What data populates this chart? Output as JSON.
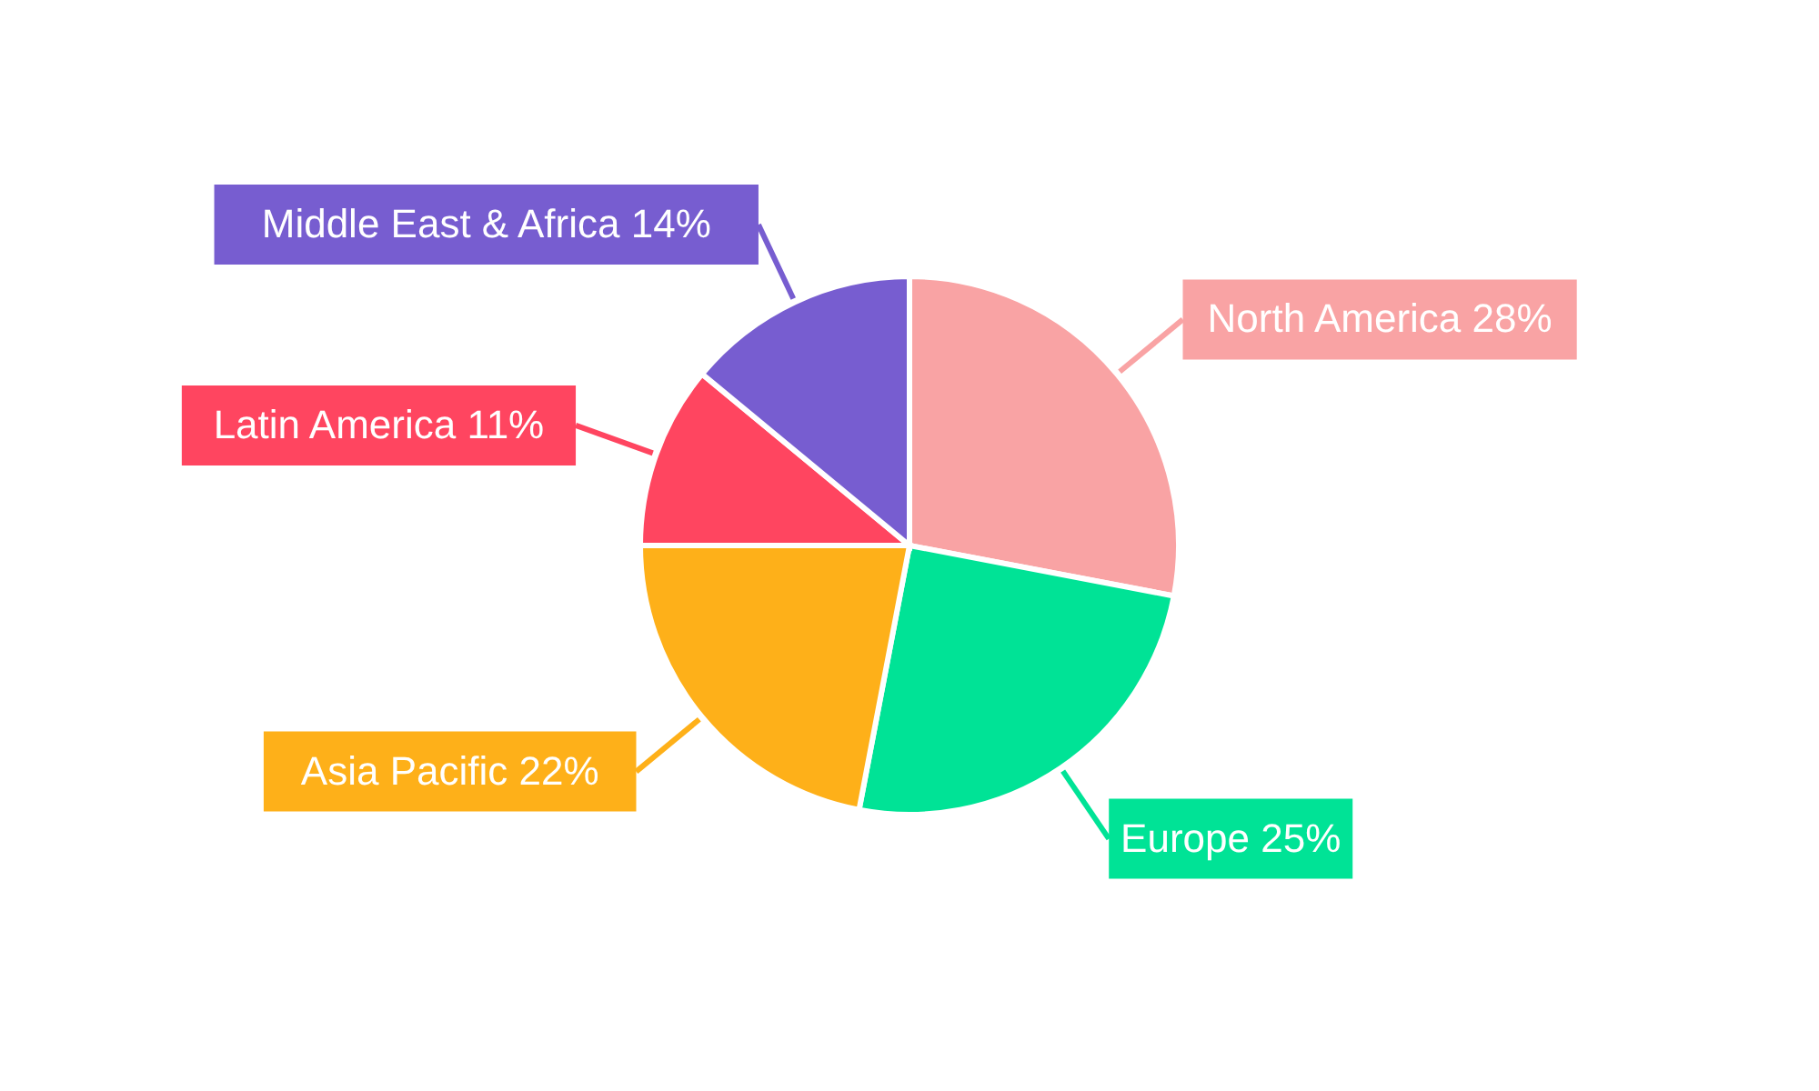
{
  "chart_data": {
    "type": "pie",
    "categories": [
      "North America",
      "Europe",
      "Asia Pacific",
      "Latin America",
      "Middle East & Africa"
    ],
    "values": [
      28,
      25,
      22,
      11,
      14
    ],
    "value_labels": [
      "28%",
      "25%",
      "22%",
      "11%",
      "14%"
    ],
    "colors": [
      "#f9a3a4",
      "#00e396",
      "#feb019",
      "#ff4560",
      "#775dd0"
    ]
  }
}
